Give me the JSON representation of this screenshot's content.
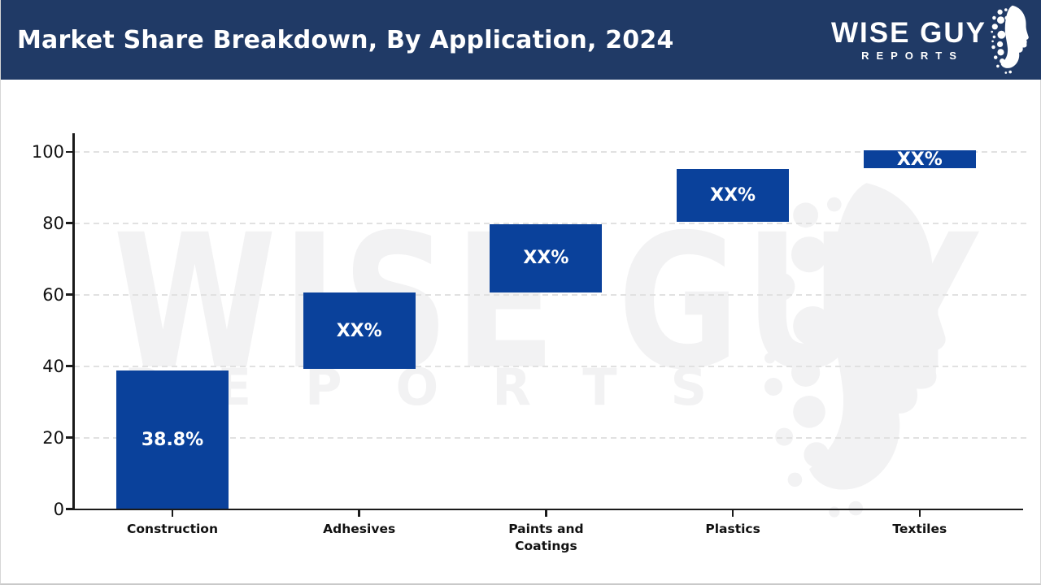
{
  "header": {
    "title": "Market Share Breakdown, By Application, 2024",
    "bg_color": "#203a66",
    "logo": {
      "line1": "WISE GUY",
      "line2": "REPORTS"
    }
  },
  "watermark": {
    "line1": "WISE GUY",
    "line2": "REPORTS"
  },
  "chart_data": {
    "type": "bar",
    "subtype": "waterfall",
    "title": "Market Share Breakdown, By Application, 2024",
    "categories": [
      {
        "lines": [
          "Construction"
        ]
      },
      {
        "lines": [
          "Adhesives"
        ]
      },
      {
        "lines": [
          "Paints and",
          "Coatings"
        ]
      },
      {
        "lines": [
          "Plastics"
        ]
      },
      {
        "lines": [
          "Textiles"
        ]
      }
    ],
    "segments": [
      {
        "category": "Construction",
        "start": 0,
        "end": 38.8,
        "label": "38.8%"
      },
      {
        "category": "Adhesives",
        "start": 39.2,
        "end": 60.6,
        "label": "XX%"
      },
      {
        "category": "Paints and Coatings",
        "start": 60.7,
        "end": 79.8,
        "label": "XX%"
      },
      {
        "category": "Plastics",
        "start": 80.4,
        "end": 95.2,
        "label": "XX%"
      },
      {
        "category": "Textiles",
        "start": 95.3,
        "end": 100.3,
        "label": "XX%"
      }
    ],
    "y_ticks": [
      0,
      20,
      40,
      60,
      80,
      100
    ],
    "ylim": [
      0,
      105
    ],
    "xlabel": "",
    "ylabel": "",
    "grid": "horizontal-dashed",
    "grid_color": "#e1e1e1",
    "bar_color": "#0a419b",
    "bar_label_color": "#ffffff",
    "axis_color": "#1a1a1a"
  }
}
